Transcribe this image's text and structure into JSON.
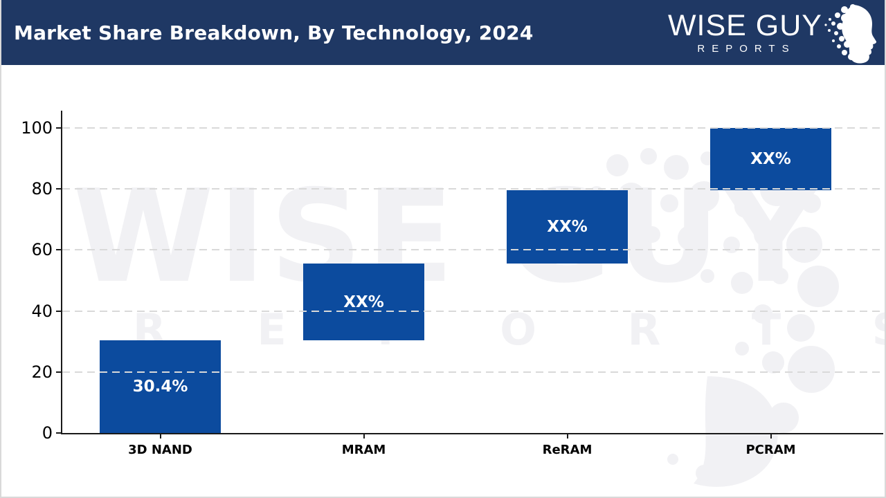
{
  "header": {
    "title": "Market Share Breakdown, By Technology, 2024",
    "logo": {
      "line1": "WISE GUY",
      "line2": "REPORTS"
    }
  },
  "watermark": {
    "line1": "WISE GUY",
    "line2": "R E P O R T S"
  },
  "colors": {
    "header_bg": "#1f3864",
    "bar": "#0c4b9e",
    "bar_label": "#ffffff",
    "grid": "#d9d9d9",
    "axis": "#1a1a1a",
    "watermark": "#f1f1f4"
  },
  "chart_data": {
    "type": "bar",
    "subtype": "waterfall",
    "title": "Market Share Breakdown, By Technology, 2024",
    "categories": [
      "3D NAND",
      "MRAM",
      "ReRAM",
      "PCRAM"
    ],
    "segments": [
      {
        "category": "3D NAND",
        "start": 0,
        "end": 30.4,
        "label": "30.4%"
      },
      {
        "category": "MRAM",
        "start": 30.4,
        "end": 55.5,
        "label": "XX%"
      },
      {
        "category": "ReRAM",
        "start": 55.5,
        "end": 79.6,
        "label": "XX%"
      },
      {
        "category": "PCRAM",
        "start": 79.6,
        "end": 100,
        "label": "XX%"
      }
    ],
    "yticks": [
      0,
      20,
      40,
      60,
      80,
      100
    ],
    "ylim": [
      0,
      105
    ],
    "xlabel": "",
    "ylabel": "",
    "grid": "dashed-horizontal",
    "legend": "none"
  }
}
